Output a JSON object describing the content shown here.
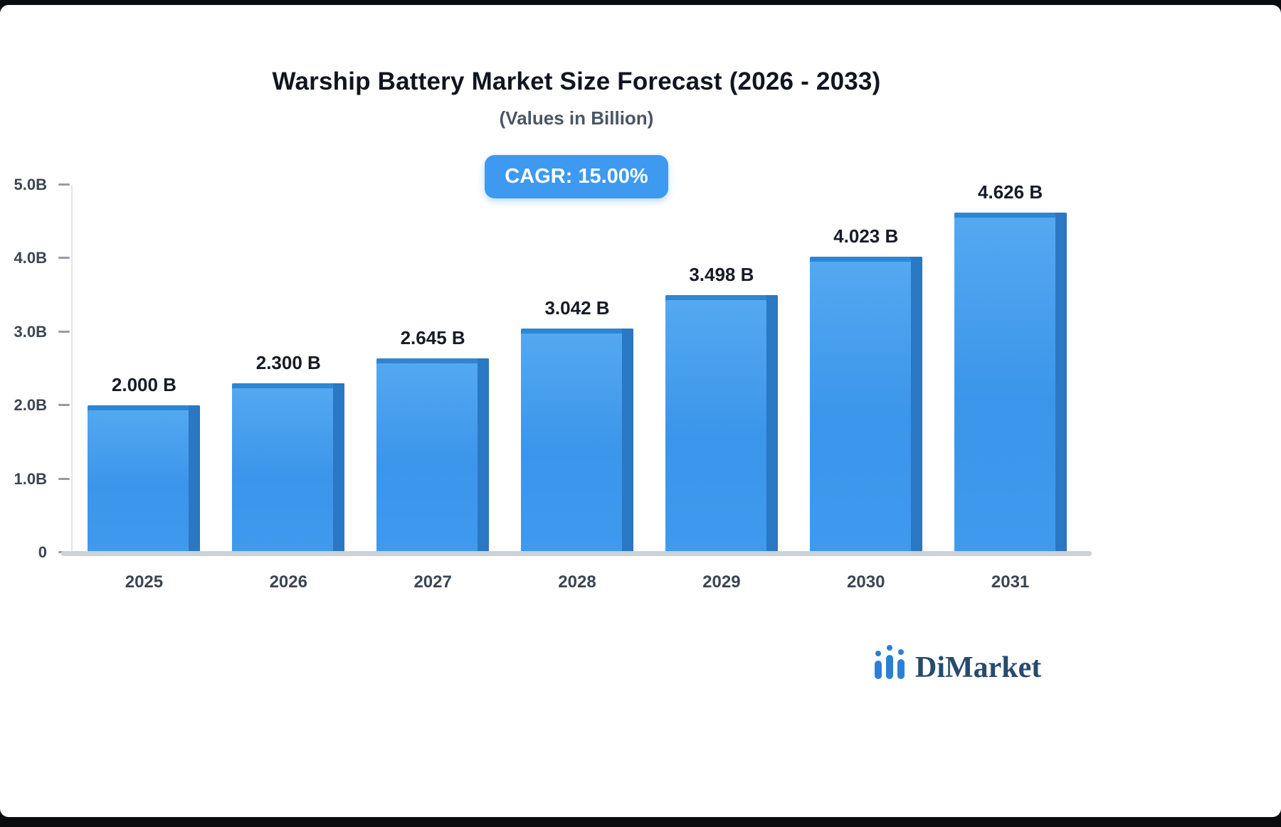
{
  "chart_data": {
    "type": "bar",
    "title": "Warship Battery Market Size Forecast (2026 - 2033)",
    "subtitle": "(Values in Billion)",
    "badge_label": "CAGR: 15.00%",
    "categories": [
      "2025",
      "2026",
      "2027",
      "2028",
      "2029",
      "2030",
      "2031"
    ],
    "values": [
      2.0,
      2.3,
      2.645,
      3.042,
      3.498,
      4.023,
      4.626
    ],
    "value_labels": [
      "2.000 B",
      "2.300 B",
      "2.645 B",
      "3.042 B",
      "3.498 B",
      "4.023 B",
      "4.626 B"
    ],
    "xlabel": "",
    "ylabel": "",
    "ylim": [
      0,
      5
    ],
    "yticks": [
      {
        "label": "0",
        "value": 0
      },
      {
        "label": "1.0B",
        "value": 1
      },
      {
        "label": "2.0B",
        "value": 2
      },
      {
        "label": "3.0B",
        "value": 3
      },
      {
        "label": "4.0B",
        "value": 4
      },
      {
        "label": "5.0B",
        "value": 5
      }
    ],
    "grid": false,
    "legend": false,
    "bar_color": "#3E99EC",
    "bar_edge_color": "#2A77C4",
    "badge_color": "#3E99F0"
  },
  "branding": {
    "logo_text": "DiMarket",
    "logo_icon": "bar-chart-icon",
    "logo_text_color": "#274B6D",
    "logo_icon_color": "#2B7FD6"
  }
}
